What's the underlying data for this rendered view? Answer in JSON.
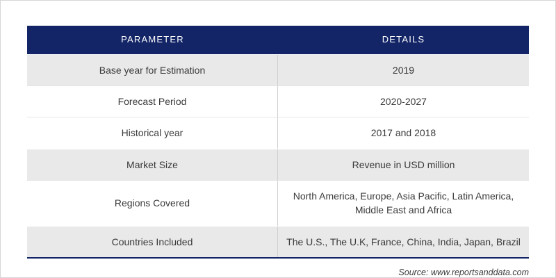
{
  "chart_data": {
    "type": "table",
    "columns": [
      "PARAMETER",
      "DETAILS"
    ],
    "rows": [
      [
        "Base year for Estimation",
        "2019"
      ],
      [
        "Forecast Period",
        "2020-2027"
      ],
      [
        "Historical year",
        "2017 and 2018"
      ],
      [
        "Market Size",
        "Revenue in USD million"
      ],
      [
        "Regions Covered",
        "North America, Europe, Asia Pacific, Latin America, Middle East and Africa"
      ],
      [
        "Countries Included",
        "The U.S., The  U.K, France, China, India, Japan, Brazil"
      ]
    ]
  },
  "source": "Source: www.reportsanddata.com",
  "colors": {
    "header_bg": "#132567",
    "header_text": "#ffffff",
    "row_shaded_bg": "#e9e9e9",
    "row_white_bg": "#ffffff",
    "body_text": "#3a3a3a",
    "table_bottom_border": "#132567"
  }
}
